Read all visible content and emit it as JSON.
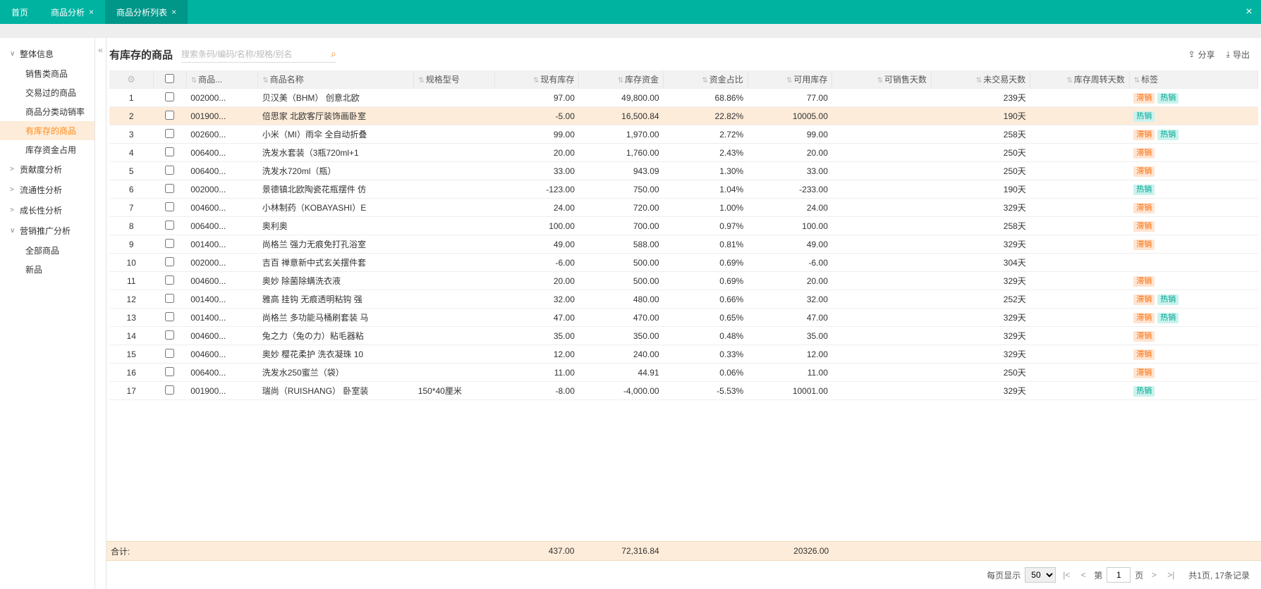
{
  "accent": "#00b3a1",
  "tabs": [
    {
      "label": "首页",
      "closable": false,
      "active": false
    },
    {
      "label": "商品分析",
      "closable": true,
      "active": false
    },
    {
      "label": "商品分析列表",
      "closable": true,
      "active": true
    }
  ],
  "topbar_close_glyph": "×",
  "sidebar": [
    {
      "type": "group",
      "label": "整体信息",
      "expanded": true,
      "items": [
        {
          "label": "销售类商品"
        },
        {
          "label": "交易过的商品"
        },
        {
          "label": "商品分类动销率"
        },
        {
          "label": "有库存的商品",
          "active": true
        },
        {
          "label": "库存资金占用"
        }
      ]
    },
    {
      "type": "group",
      "label": "贡献度分析",
      "expanded": false
    },
    {
      "type": "group",
      "label": "流通性分析",
      "expanded": false
    },
    {
      "type": "group",
      "label": "成长性分析",
      "expanded": false
    },
    {
      "type": "group",
      "label": "营销推广分析",
      "expanded": true,
      "items": [
        {
          "label": "全部商品"
        },
        {
          "label": "新品"
        }
      ]
    }
  ],
  "collapse_glyph": "«",
  "page_title": "有库存的商品",
  "search_placeholder": "搜索条码/编码/名称/规格/别名",
  "actions": {
    "share": "分享",
    "export": "导出"
  },
  "columns": [
    {
      "key": "idx",
      "label": "",
      "cls": "col-idx",
      "gear": true
    },
    {
      "key": "chk",
      "label": "",
      "cls": "col-chk",
      "checkbox": true
    },
    {
      "key": "code",
      "label": "商品...",
      "cls": "col-code",
      "sort": true
    },
    {
      "key": "name",
      "label": "商品名称",
      "cls": "col-name",
      "sort": true
    },
    {
      "key": "spec",
      "label": "规格型号",
      "cls": "col-spec",
      "sort": true
    },
    {
      "key": "stock",
      "label": "现有库存",
      "cls": "col-num",
      "sort": true,
      "num": true
    },
    {
      "key": "fund",
      "label": "库存资金",
      "cls": "col-num",
      "sort": true,
      "num": true
    },
    {
      "key": "pct",
      "label": "资金占比",
      "cls": "col-num",
      "sort": true,
      "num": true
    },
    {
      "key": "avail",
      "label": "可用库存",
      "cls": "col-num",
      "sort": true,
      "num": true
    },
    {
      "key": "saled",
      "label": "可销售天数",
      "cls": "col-numw",
      "sort": true,
      "num": true
    },
    {
      "key": "notr",
      "label": "未交易天数",
      "cls": "col-numw",
      "sort": true,
      "num": true
    },
    {
      "key": "turn",
      "label": "库存周转天数",
      "cls": "col-numw",
      "sort": true,
      "num": true
    },
    {
      "key": "tags",
      "label": "标签",
      "cls": "col-lbl",
      "sort": true
    }
  ],
  "rows": [
    {
      "idx": 1,
      "code": "002000...",
      "name": "贝汉美（BHM） 创意北欧",
      "spec": "",
      "stock": "97.00",
      "fund": "49,800.00",
      "pct": "68.86%",
      "avail": "77.00",
      "saled": "",
      "notr": "239天",
      "turn": "",
      "tags": [
        "滞销",
        "热销"
      ]
    },
    {
      "idx": 2,
      "code": "001900...",
      "name": "倍思家 北欧客厅装饰画卧室",
      "spec": "",
      "stock": "-5.00",
      "fund": "16,500.84",
      "pct": "22.82%",
      "avail": "10005.00",
      "saled": "",
      "notr": "190天",
      "turn": "",
      "tags": [
        "热销"
      ],
      "hl": true
    },
    {
      "idx": 3,
      "code": "002600...",
      "name": "小米（MI）雨伞 全自动折叠",
      "spec": "",
      "stock": "99.00",
      "fund": "1,970.00",
      "pct": "2.72%",
      "avail": "99.00",
      "saled": "",
      "notr": "258天",
      "turn": "",
      "tags": [
        "滞销",
        "热销"
      ]
    },
    {
      "idx": 4,
      "code": "006400...",
      "name": "洗发水套装（3瓶720ml+1",
      "spec": "",
      "stock": "20.00",
      "fund": "1,760.00",
      "pct": "2.43%",
      "avail": "20.00",
      "saled": "",
      "notr": "250天",
      "turn": "",
      "tags": [
        "滞销"
      ]
    },
    {
      "idx": 5,
      "code": "006400...",
      "name": "洗发水720ml（瓶）",
      "spec": "",
      "stock": "33.00",
      "fund": "943.09",
      "pct": "1.30%",
      "avail": "33.00",
      "saled": "",
      "notr": "250天",
      "turn": "",
      "tags": [
        "滞销"
      ]
    },
    {
      "idx": 6,
      "code": "002000...",
      "name": "景德镇北欧陶瓷花瓶摆件 仿",
      "spec": "",
      "stock": "-123.00",
      "fund": "750.00",
      "pct": "1.04%",
      "avail": "-233.00",
      "saled": "",
      "notr": "190天",
      "turn": "",
      "tags": [
        "热销"
      ]
    },
    {
      "idx": 7,
      "code": "004600...",
      "name": "小林制药（KOBAYASHI）E",
      "spec": "",
      "stock": "24.00",
      "fund": "720.00",
      "pct": "1.00%",
      "avail": "24.00",
      "saled": "",
      "notr": "329天",
      "turn": "",
      "tags": [
        "滞销"
      ]
    },
    {
      "idx": 8,
      "code": "006400...",
      "name": "奥利奥",
      "spec": "",
      "stock": "100.00",
      "fund": "700.00",
      "pct": "0.97%",
      "avail": "100.00",
      "saled": "",
      "notr": "258天",
      "turn": "",
      "tags": [
        "滞销"
      ]
    },
    {
      "idx": 9,
      "code": "001400...",
      "name": "尚格兰 强力无痕免打孔浴室",
      "spec": "",
      "stock": "49.00",
      "fund": "588.00",
      "pct": "0.81%",
      "avail": "49.00",
      "saled": "",
      "notr": "329天",
      "turn": "",
      "tags": [
        "滞销"
      ]
    },
    {
      "idx": 10,
      "code": "002000...",
      "name": "吉百 禅意新中式玄关摆件套",
      "spec": "",
      "stock": "-6.00",
      "fund": "500.00",
      "pct": "0.69%",
      "avail": "-6.00",
      "saled": "",
      "notr": "304天",
      "turn": "",
      "tags": []
    },
    {
      "idx": 11,
      "code": "004600...",
      "name": "奥妙 除菌除螨洗衣液",
      "spec": "",
      "stock": "20.00",
      "fund": "500.00",
      "pct": "0.69%",
      "avail": "20.00",
      "saled": "",
      "notr": "329天",
      "turn": "",
      "tags": [
        "滞销"
      ]
    },
    {
      "idx": 12,
      "code": "001400...",
      "name": "雅高 挂钩 无痕透明粘钩 强",
      "spec": "",
      "stock": "32.00",
      "fund": "480.00",
      "pct": "0.66%",
      "avail": "32.00",
      "saled": "",
      "notr": "252天",
      "turn": "",
      "tags": [
        "滞销",
        "热销"
      ]
    },
    {
      "idx": 13,
      "code": "001400...",
      "name": "尚格兰 多功能马桶刷套装 马",
      "spec": "",
      "stock": "47.00",
      "fund": "470.00",
      "pct": "0.65%",
      "avail": "47.00",
      "saled": "",
      "notr": "329天",
      "turn": "",
      "tags": [
        "滞销",
        "热销"
      ]
    },
    {
      "idx": 14,
      "code": "004600...",
      "name": "兔之力（兔の力）粘毛器粘",
      "spec": "",
      "stock": "35.00",
      "fund": "350.00",
      "pct": "0.48%",
      "avail": "35.00",
      "saled": "",
      "notr": "329天",
      "turn": "",
      "tags": [
        "滞销"
      ]
    },
    {
      "idx": 15,
      "code": "004600...",
      "name": "奥妙 樱花柔护 洗衣凝珠 10",
      "spec": "",
      "stock": "12.00",
      "fund": "240.00",
      "pct": "0.33%",
      "avail": "12.00",
      "saled": "",
      "notr": "329天",
      "turn": "",
      "tags": [
        "滞销"
      ]
    },
    {
      "idx": 16,
      "code": "006400...",
      "name": "洗发水250蜜兰（袋）",
      "spec": "",
      "stock": "11.00",
      "fund": "44.91",
      "pct": "0.06%",
      "avail": "11.00",
      "saled": "",
      "notr": "250天",
      "turn": "",
      "tags": [
        "滞销"
      ]
    },
    {
      "idx": 17,
      "code": "001900...",
      "name": "瑞尚（RUISHANG） 卧室装",
      "spec": "150*40厘米",
      "stock": "-8.00",
      "fund": "-4,000.00",
      "pct": "-5.53%",
      "avail": "10001.00",
      "saled": "",
      "notr": "329天",
      "turn": "",
      "tags": [
        "热销"
      ]
    }
  ],
  "totals": {
    "label": "合计:",
    "stock": "437.00",
    "fund": "72,316.84",
    "avail": "20326.00"
  },
  "tag_styles": {
    "滞销": "tag-orange",
    "热销": "tag-teal"
  },
  "pager": {
    "per_page_label": "每页显示",
    "per_page_value": "50",
    "page_label_prefix": "第",
    "page_value": "1",
    "page_label_suffix": "页",
    "summary": "共1页, 17条记录",
    "first": "|<",
    "prev": "<",
    "next": ">",
    "last": ">|"
  }
}
